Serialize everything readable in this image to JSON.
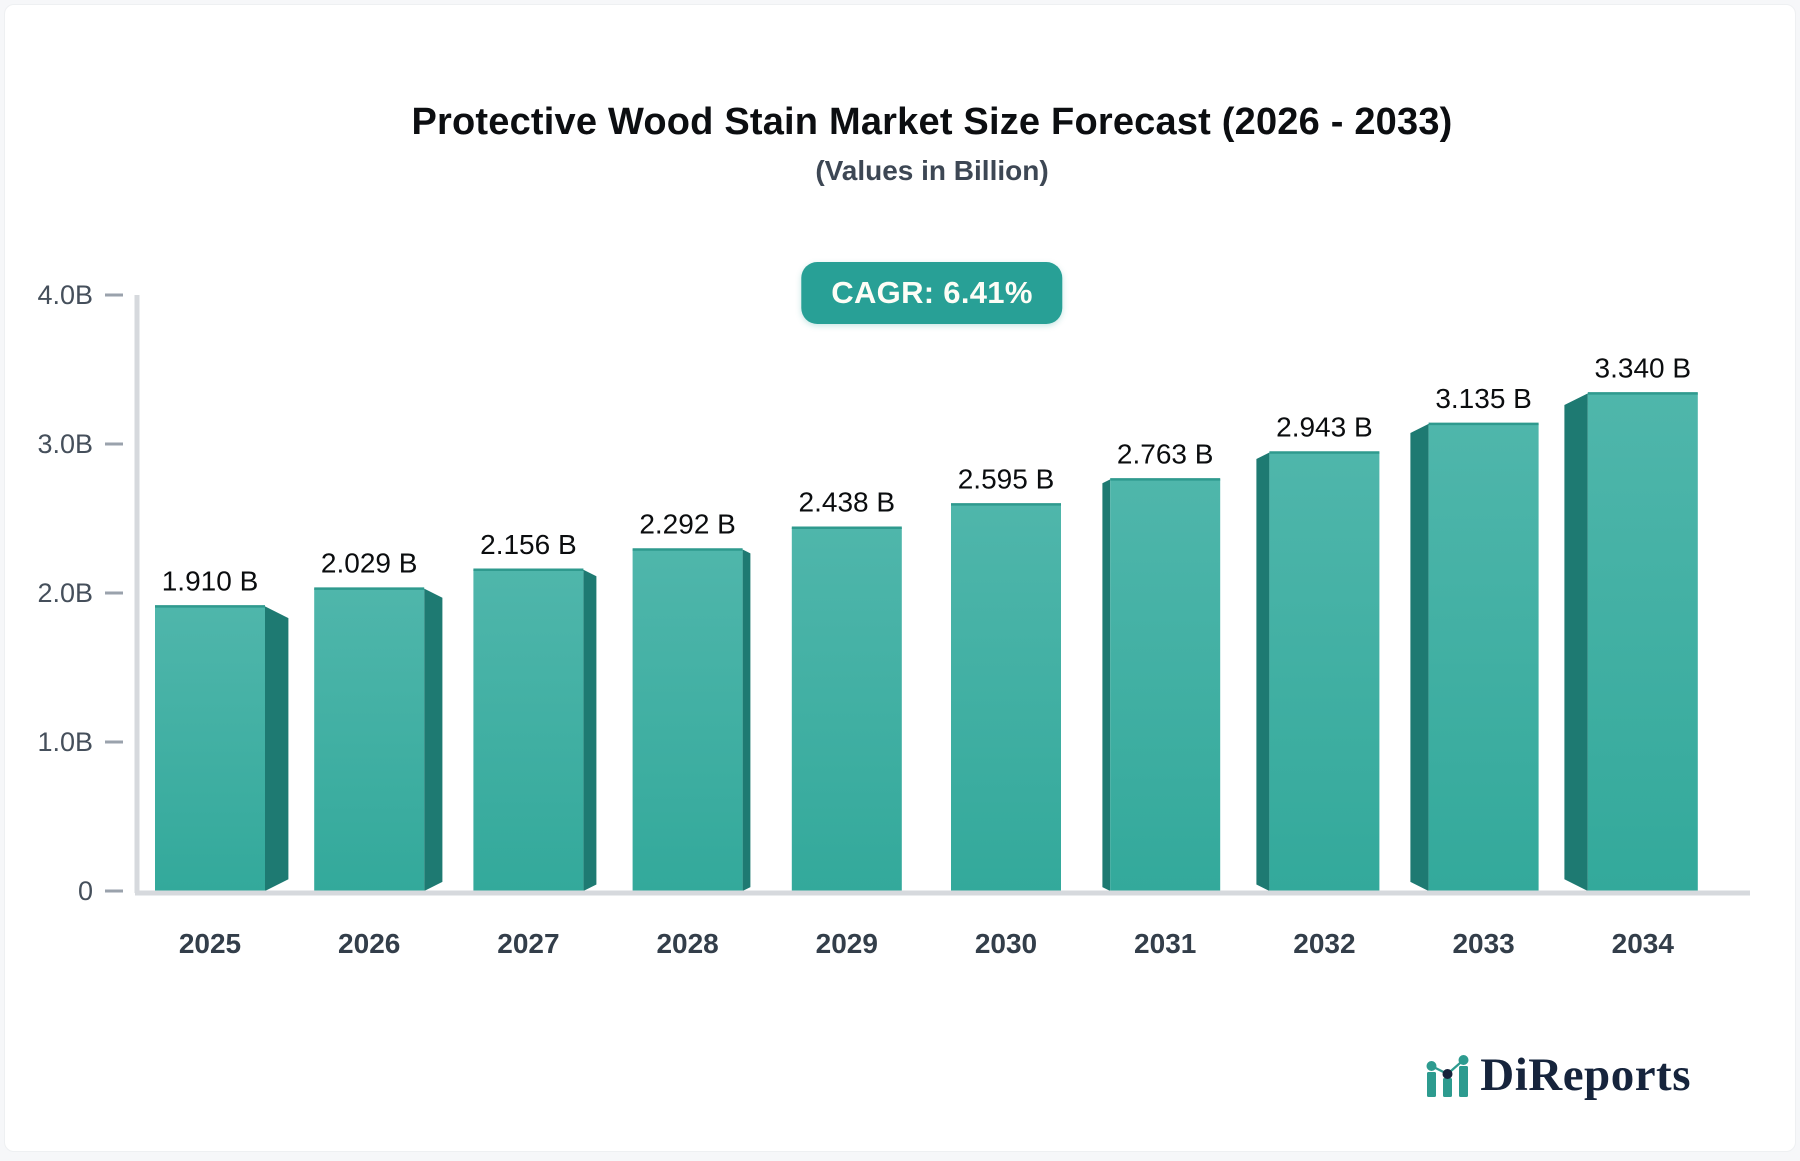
{
  "header": {
    "title": "Protective Wood Stain Market Size Forecast (2026 - 2033)",
    "subtitle": "(Values in Billion)",
    "cagr_badge": "CAGR: 6.41%"
  },
  "chart_data": {
    "type": "bar",
    "title": "Protective Wood Stain Market Size Forecast (2026 - 2033)",
    "subtitle": "(Values in Billion)",
    "annotation": "CAGR: 6.41%",
    "categories": [
      "2025",
      "2026",
      "2027",
      "2028",
      "2029",
      "2030",
      "2031",
      "2032",
      "2033",
      "2034"
    ],
    "values": [
      1.91,
      2.029,
      2.156,
      2.292,
      2.438,
      2.595,
      2.763,
      2.943,
      3.135,
      3.34
    ],
    "bar_labels": [
      "1.910 B",
      "2.029 B",
      "2.156 B",
      "2.292 B",
      "2.438 B",
      "2.595 B",
      "2.763 B",
      "2.943 B",
      "3.135 B",
      "3.340 B"
    ],
    "unit": "Billion",
    "ylim": [
      0,
      4.0
    ],
    "y_ticks": [
      {
        "label": "4.0B",
        "value": 4.0
      },
      {
        "label": "3.0B",
        "value": 3.0
      },
      {
        "label": "2.0B",
        "value": 2.0
      },
      {
        "label": "1.0B",
        "value": 1.0
      },
      {
        "label": "0",
        "value": 0.0
      }
    ],
    "grid": false,
    "legend": null,
    "style": "3d-bars, side faces toward center vanishing point",
    "colors": {
      "bar_face_top": "#4fb6ab",
      "bar_face_bottom": "#33a99b",
      "bar_side": "#1e7a72",
      "bar_top_edge": "#2f9a8e",
      "axis_line": "#d6d9dd",
      "tick_dash": "#9aa2ac",
      "y_label": "#454f5b",
      "x_label": "#333e4a",
      "value_label": "#0b0d0f",
      "badge_background": "#28a096"
    }
  },
  "footer": {
    "logo_text": "DiReports",
    "logo_colors": {
      "icon_teal": "#2d9b8f",
      "icon_navy": "#16243c",
      "text_navy": "#16243c"
    }
  }
}
